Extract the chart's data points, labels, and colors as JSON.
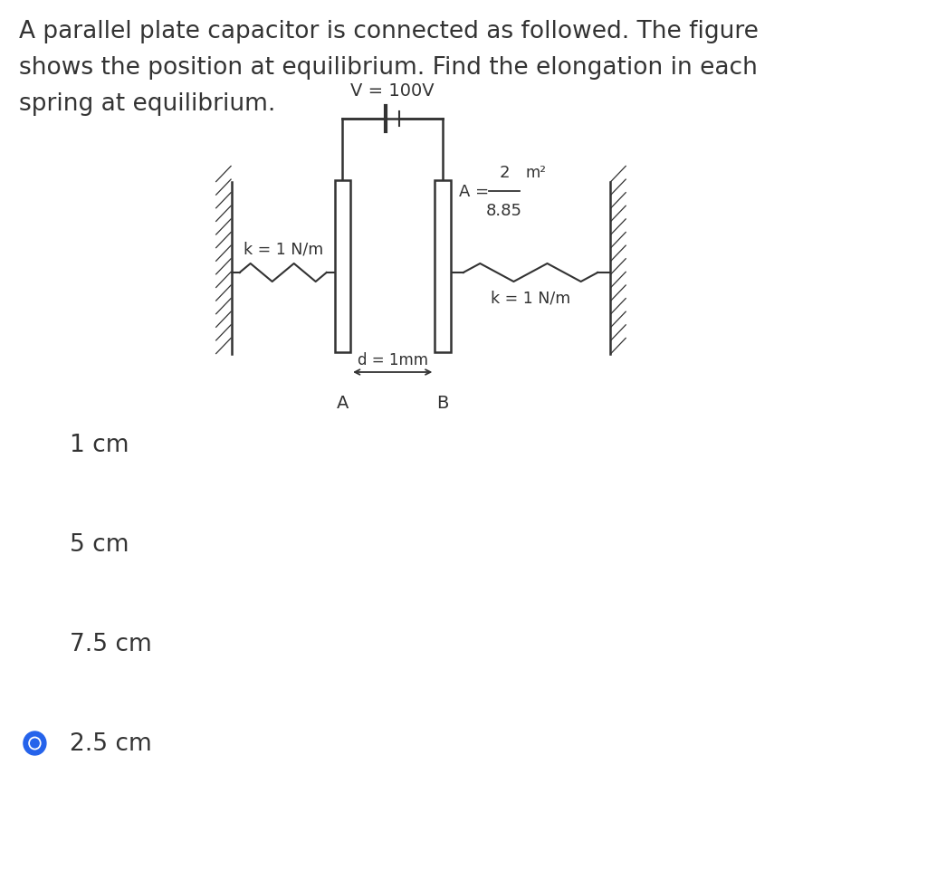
{
  "title_line1": "A parallel plate capacitor is connected as followed. The figure",
  "title_line2": "shows the position at equilibrium. Find the elongation in each",
  "title_line3": "spring at equilibrium.",
  "voltage_label": "V = 100V",
  "area_label_num": "2",
  "area_label_den": "8.85",
  "area_label_unit": "m²",
  "spring_left_label": "k = 1 N/m",
  "spring_right_label": "k = 1 N/m",
  "dist_label": "d = 1mm",
  "plate_A_label": "A",
  "plate_B_label": "B",
  "options": [
    "1 cm",
    "5 cm",
    "7.5 cm",
    "2.5 cm"
  ],
  "selected_option": 3,
  "bg_color": "#ffffff",
  "text_color": "#333333",
  "diagram_color": "#333333",
  "selected_color": "#2563eb"
}
